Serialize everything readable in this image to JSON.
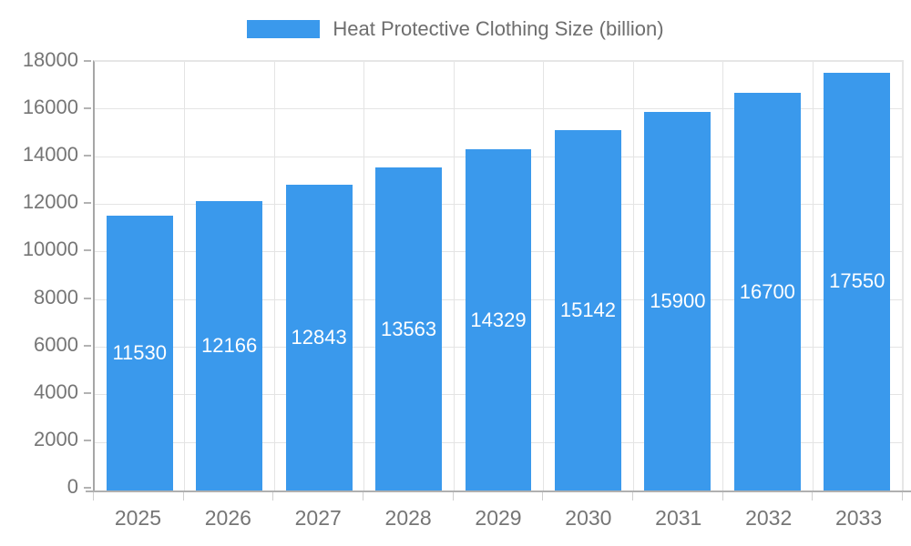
{
  "legend": {
    "label": "Heat Protective Clothing Size (billion)",
    "swatch_color": "#3A99EC"
  },
  "chart_data": {
    "type": "bar",
    "title": "Heat Protective Clothing Size (billion)",
    "series_name": "Heat Protective Clothing Size (billion)",
    "categories": [
      "2025",
      "2026",
      "2027",
      "2028",
      "2029",
      "2030",
      "2031",
      "2032",
      "2033"
    ],
    "values": [
      11530,
      12166,
      12843,
      13563,
      14329,
      15142,
      15900,
      16700,
      17550
    ],
    "bar_value_labels": [
      "11530",
      "12166",
      "12843",
      "13563",
      "14329",
      "15142",
      "15900",
      "16700",
      "17550"
    ],
    "xlabel": "",
    "ylabel": "",
    "ylim": [
      0,
      18000
    ],
    "y_tick_step": 2000,
    "y_ticks": [
      0,
      2000,
      4000,
      6000,
      8000,
      10000,
      12000,
      14000,
      16000,
      18000
    ],
    "grid": true,
    "legend_position": "top",
    "bar_color": "#3A99EC",
    "bar_label_color": "#ffffff",
    "axis_text_color": "#757575"
  }
}
